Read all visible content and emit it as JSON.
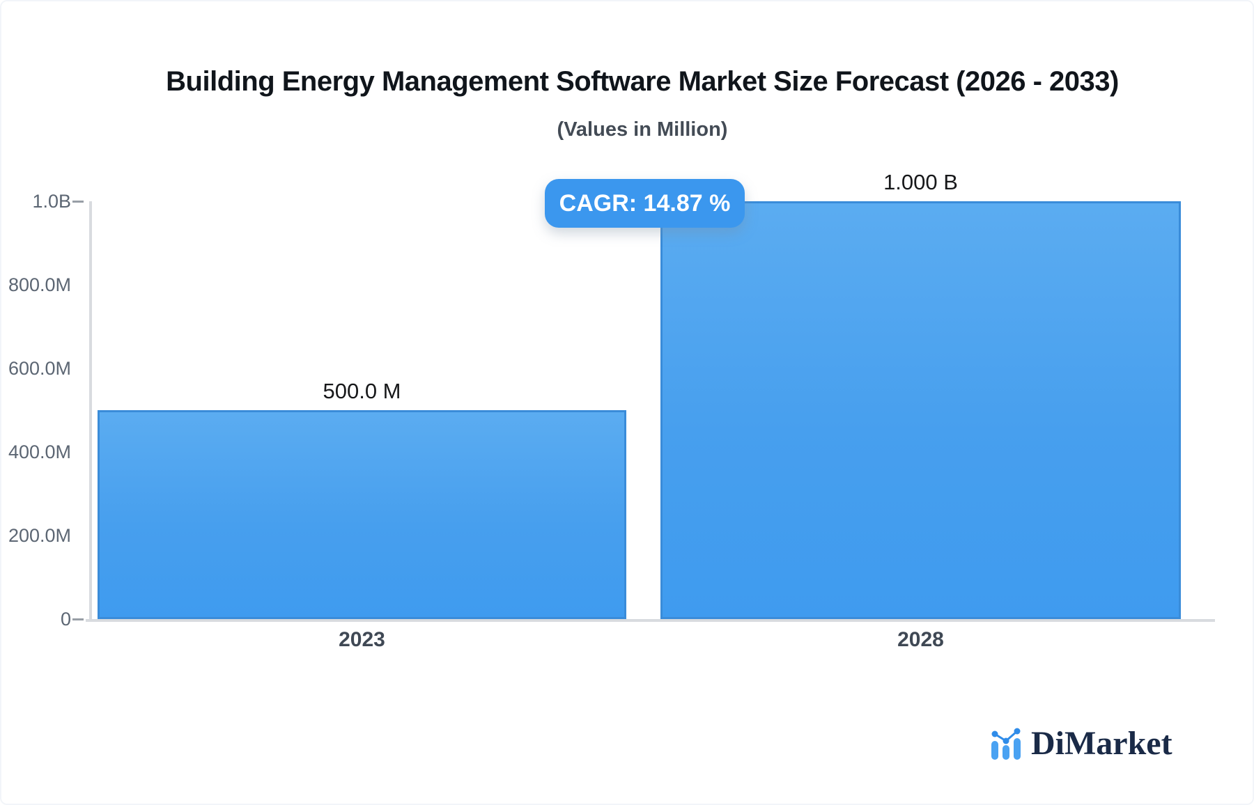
{
  "page": {
    "background_color": "#ffffff",
    "border_color": "#f2f5f9"
  },
  "header": {
    "title": "Building Energy Management Software Market Size Forecast (2026 - 2033)",
    "subtitle": "(Values in Million)"
  },
  "cagr_badge": {
    "label": "CAGR: 14.87 %",
    "bg_color": "#3b97ee",
    "text_color": "#ffffff"
  },
  "chart_data": {
    "type": "bar",
    "title": "Building Energy Management Software Market Size Forecast (2026 - 2033)",
    "subtitle": "(Values in Million)",
    "unit": "Million",
    "categories": [
      "2023",
      "2028"
    ],
    "values": [
      500.0,
      1000.0
    ],
    "value_labels": [
      "500.0 M",
      "1.000 B"
    ],
    "cagr_percent": "14.87 %",
    "y_axis": {
      "range": [
        0,
        1000
      ],
      "gridlines": false,
      "ticks": [
        {
          "label": "1.0B",
          "value": 1000,
          "dash": true
        },
        {
          "label": "800.0M",
          "value": 800,
          "dash": false
        },
        {
          "label": "600.0M",
          "value": 600,
          "dash": false
        },
        {
          "label": "400.0M",
          "value": 400,
          "dash": false
        },
        {
          "label": "200.0M",
          "value": 200,
          "dash": false
        },
        {
          "label": "0",
          "value": 0,
          "dash": true
        }
      ]
    },
    "legend": null,
    "bar_fill_top": "#5bacf1",
    "bar_fill_bottom": "#3f9bef",
    "bar_border_color": "#3a8cd9"
  },
  "branding": {
    "logo_text": "DiMarket",
    "logo_icon": "mini-bar-chart-icon",
    "logo_text_color": "#1a2a47",
    "logo_icon_color": "#3f9af0"
  }
}
